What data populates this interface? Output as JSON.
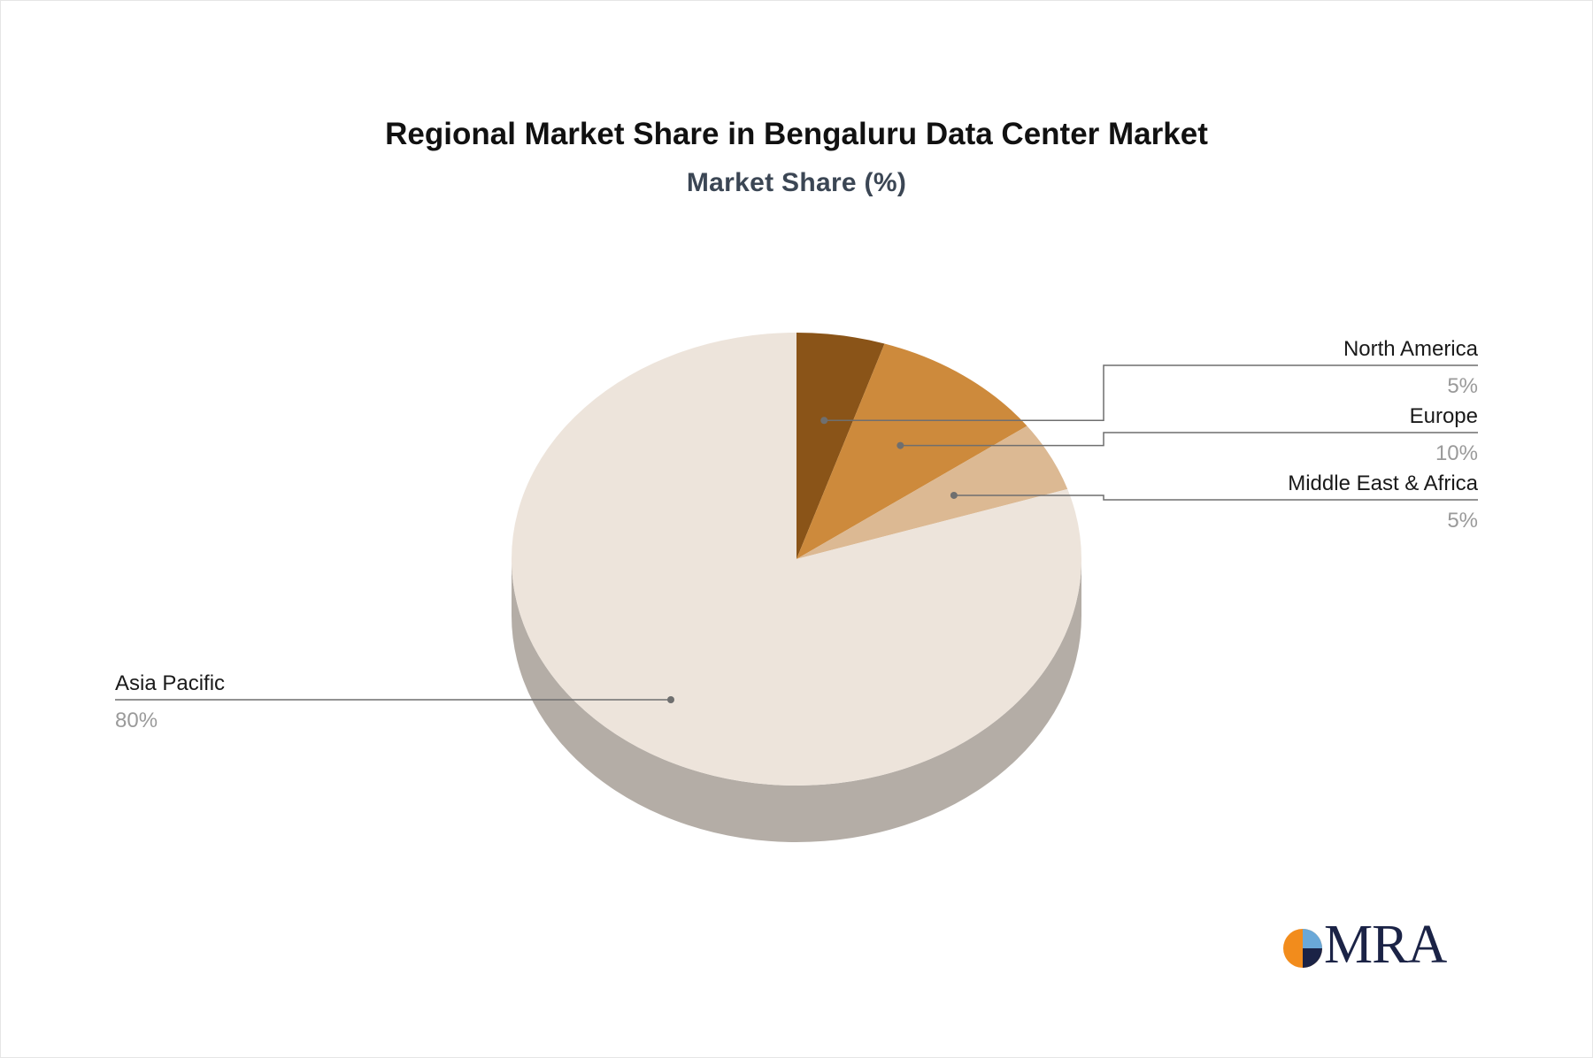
{
  "chart_data": {
    "type": "pie",
    "title": "Regional Market Share in Bengaluru Data Center Market",
    "subtitle": "Market Share (%)",
    "slices": [
      {
        "label": "North America",
        "value": 5,
        "value_label": "5%",
        "color": "#8a5418"
      },
      {
        "label": "Europe",
        "value": 10,
        "value_label": "10%",
        "color": "#cd8a3c"
      },
      {
        "label": "Middle East & Africa",
        "value": 5,
        "value_label": "5%",
        "color": "#dcb993"
      },
      {
        "label": "Asia Pacific",
        "value": 80,
        "value_label": "80%",
        "color": "#ede4db"
      }
    ],
    "side_color": "#b4ada6",
    "style": "3d"
  },
  "logo": {
    "text": "MRA",
    "colors": [
      "#f28c1c",
      "#1b2346",
      "#6aa8d8"
    ]
  }
}
